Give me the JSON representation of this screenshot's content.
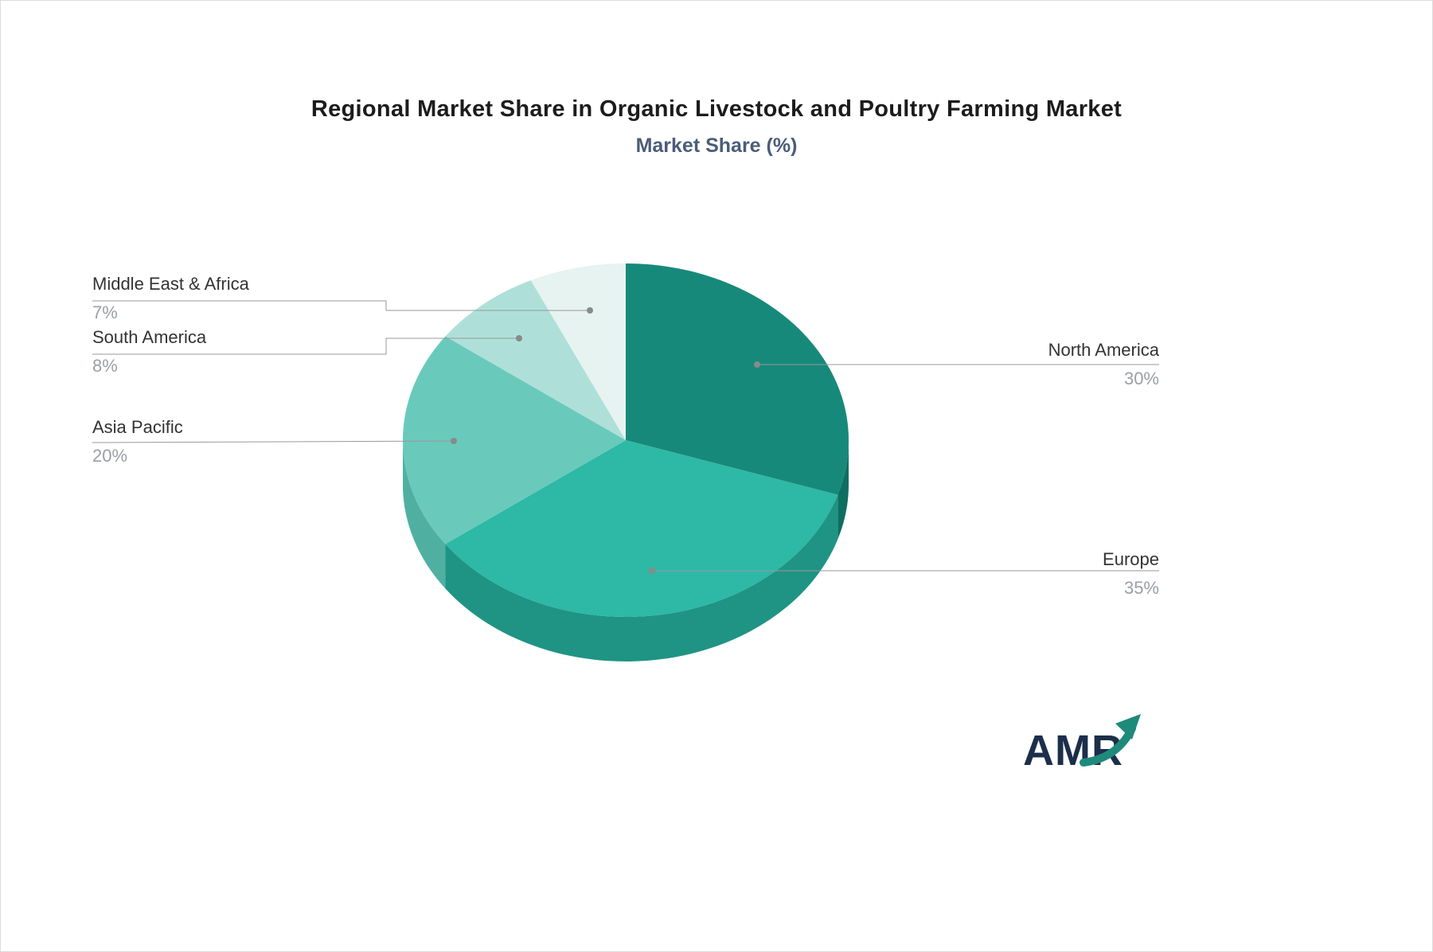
{
  "header": {
    "title": "Regional Market Share in Organic Livestock and Poultry Farming Market",
    "subtitle": "Market Share (%)"
  },
  "chart_data": {
    "type": "pie",
    "style": "3d-pie",
    "title": "Regional Market Share in Organic Livestock and Poultry Farming Market",
    "subtitle": "Market Share (%)",
    "unit": "%",
    "start_angle_deg": 0,
    "direction": "clockwise",
    "legend_position": "none",
    "labels_shown_with_leader_lines": true,
    "slices": [
      {
        "label": "North America",
        "value": 30,
        "display": "30%",
        "color": "#17897b",
        "side_color": "#0f6e62"
      },
      {
        "label": "Europe",
        "value": 35,
        "display": "35%",
        "color": "#2eb8a6",
        "side_color": "#1f9484"
      },
      {
        "label": "Asia Pacific",
        "value": 20,
        "display": "20%",
        "color": "#69cabc",
        "side_color": "#4fb0a2"
      },
      {
        "label": "South America",
        "value": 8,
        "display": "8%",
        "color": "#aee0d9",
        "side_color": "#8cc9c0"
      },
      {
        "label": "Middle East & Africa",
        "value": 7,
        "display": "7%",
        "color": "#e7f3f1",
        "side_color": "#c5e2dd"
      }
    ]
  },
  "logo": {
    "text": "AMR"
  },
  "colors": {
    "leader_line": "#999999",
    "label_text": "#333333",
    "percent_text": "#9aa0a6",
    "title_text": "#1c1c1c",
    "subtitle_text": "#4a5d78",
    "logo_text": "#1c2e4a",
    "logo_arrow": "#1e8a7b"
  }
}
